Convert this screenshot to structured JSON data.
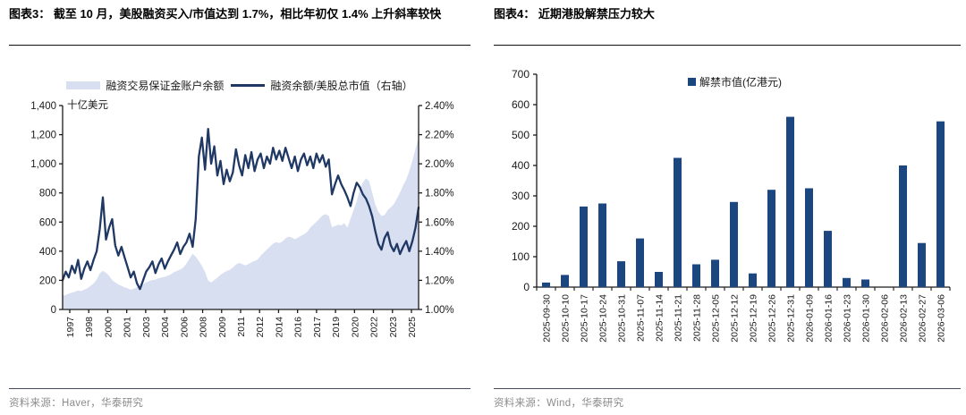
{
  "figures": [
    {
      "title": "图表3：  截至 10 月，美股融资买入/市值达到 1.7%，相比年初仅 1.4% 上升斜率较快",
      "source": "资料来源：Haver，华泰研究"
    },
    {
      "title": "图表4：  近期港股解禁压力较大",
      "source": "资料来源：Wind，华泰研究"
    }
  ],
  "chart_data": [
    {
      "type": "area",
      "subtype": "area+line-dual-axis",
      "title": "美股融资交易保证金账户余额与融资余额/美股总市值",
      "unit_label": "十亿美元",
      "legend": [
        "融资交易保证金账户余额",
        "融资余额/美股总市值（右轴）"
      ],
      "x_start": 1997,
      "x_step": 0.25,
      "x_tick_labels": [
        "1997",
        "1998",
        "2000",
        "2001",
        "2003",
        "2004",
        "2006",
        "2008",
        "2009",
        "2011",
        "2012",
        "2014",
        "2016",
        "2017",
        "2019",
        "2020",
        "2022",
        "2023",
        "2025"
      ],
      "left_axis": {
        "min": 0,
        "max": 1400,
        "ticks": [
          "1,400",
          "1,200",
          "1,000",
          "800",
          "600",
          "400",
          "200",
          "0"
        ]
      },
      "right_axis": {
        "min": 1.0,
        "max": 2.4,
        "ticks": [
          "2.40%",
          "2.20%",
          "2.00%",
          "1.80%",
          "1.60%",
          "1.40%",
          "1.20%",
          "1.00%"
        ]
      },
      "grid": false,
      "legend_position": "top-center",
      "area_series": {
        "name": "融资交易保证金账户余额",
        "color": "#d8dff0",
        "axis": "left",
        "values": [
          95,
          100,
          108,
          116,
          122,
          130,
          126,
          136,
          146,
          162,
          178,
          205,
          248,
          265,
          252,
          232,
          202,
          186,
          172,
          162,
          152,
          146,
          136,
          142,
          152,
          162,
          172,
          186,
          196,
          202,
          206,
          214,
          220,
          224,
          232,
          242,
          256,
          266,
          274,
          288,
          315,
          348,
          382,
          362,
          332,
          300,
          258,
          198,
          186,
          202,
          218,
          238,
          252,
          264,
          272,
          288,
          308,
          320,
          312,
          302,
          312,
          324,
          332,
          342,
          370,
          392,
          412,
          432,
          452,
          462,
          456,
          466,
          488,
          500,
          494,
          482,
          492,
          506,
          516,
          532,
          562,
          582,
          602,
          626,
          646,
          654,
          642,
          565,
          572,
          582,
          577,
          592,
          562,
          624,
          682,
          742,
          822,
          872,
          900,
          882,
          802,
          722,
          672,
          642,
          648,
          682,
          702,
          722,
          762,
          802,
          852,
          892,
          952,
          1022,
          1102,
          1180
        ]
      },
      "line_series": {
        "name": "融资余额/美股总市值（右轴）",
        "color": "#1f3864",
        "axis": "right",
        "values": [
          1.2,
          1.26,
          1.22,
          1.3,
          1.25,
          1.34,
          1.21,
          1.28,
          1.33,
          1.27,
          1.34,
          1.4,
          1.55,
          1.77,
          1.48,
          1.56,
          1.62,
          1.44,
          1.37,
          1.43,
          1.36,
          1.29,
          1.22,
          1.26,
          1.18,
          1.14,
          1.2,
          1.26,
          1.29,
          1.33,
          1.25,
          1.31,
          1.35,
          1.28,
          1.33,
          1.37,
          1.41,
          1.46,
          1.38,
          1.43,
          1.46,
          1.52,
          1.43,
          1.62,
          2.05,
          2.18,
          1.96,
          2.24,
          2.0,
          2.12,
          1.92,
          2.02,
          1.86,
          1.96,
          1.88,
          1.94,
          2.1,
          1.99,
          1.92,
          2.06,
          1.97,
          2.08,
          1.95,
          2.03,
          2.07,
          1.97,
          2.05,
          2.0,
          2.11,
          2.03,
          2.09,
          2.02,
          2.11,
          2.04,
          1.97,
          2.05,
          1.95,
          2.03,
          2.07,
          1.99,
          2.05,
          1.97,
          2.07,
          2.01,
          2.06,
          1.98,
          2.03,
          1.79,
          1.86,
          1.92,
          1.86,
          1.82,
          1.77,
          1.71,
          1.8,
          1.87,
          1.84,
          1.79,
          1.76,
          1.71,
          1.64,
          1.54,
          1.45,
          1.41,
          1.49,
          1.53,
          1.44,
          1.4,
          1.45,
          1.38,
          1.43,
          1.47,
          1.4,
          1.47,
          1.56,
          1.7
        ]
      }
    },
    {
      "type": "bar",
      "title": "近期港股解禁市值",
      "legend": "解禁市值(亿港元)",
      "bar_color": "#1b4680",
      "ylim": [
        0,
        700
      ],
      "y_ticks": [
        "700",
        "600",
        "500",
        "400",
        "300",
        "200",
        "100",
        "0"
      ],
      "grid": false,
      "legend_position": "top-center",
      "categories": [
        "2025-09-30",
        "2025-10-10",
        "2025-10-17",
        "2025-10-24",
        "2025-10-31",
        "2025-11-07",
        "2025-11-14",
        "2025-11-21",
        "2025-11-28",
        "2025-12-05",
        "2025-12-12",
        "2025-12-19",
        "2025-12-26",
        "2025-12-31",
        "2026-01-09",
        "2026-01-16",
        "2026-01-23",
        "2026-01-30",
        "2026-02-06",
        "2026-02-13",
        "2026-02-27",
        "2026-03-06"
      ],
      "values": [
        15,
        40,
        265,
        275,
        85,
        160,
        50,
        425,
        75,
        90,
        280,
        45,
        320,
        560,
        325,
        185,
        30,
        25,
        0,
        400,
        145,
        545
      ]
    }
  ],
  "colors": {
    "line_navy": "#1f3864",
    "area_light_blue": "#d8dff0",
    "bar_navy": "#1b4680",
    "axis_black": "#1a1a1a",
    "source_gray": "#8c8c8c"
  }
}
